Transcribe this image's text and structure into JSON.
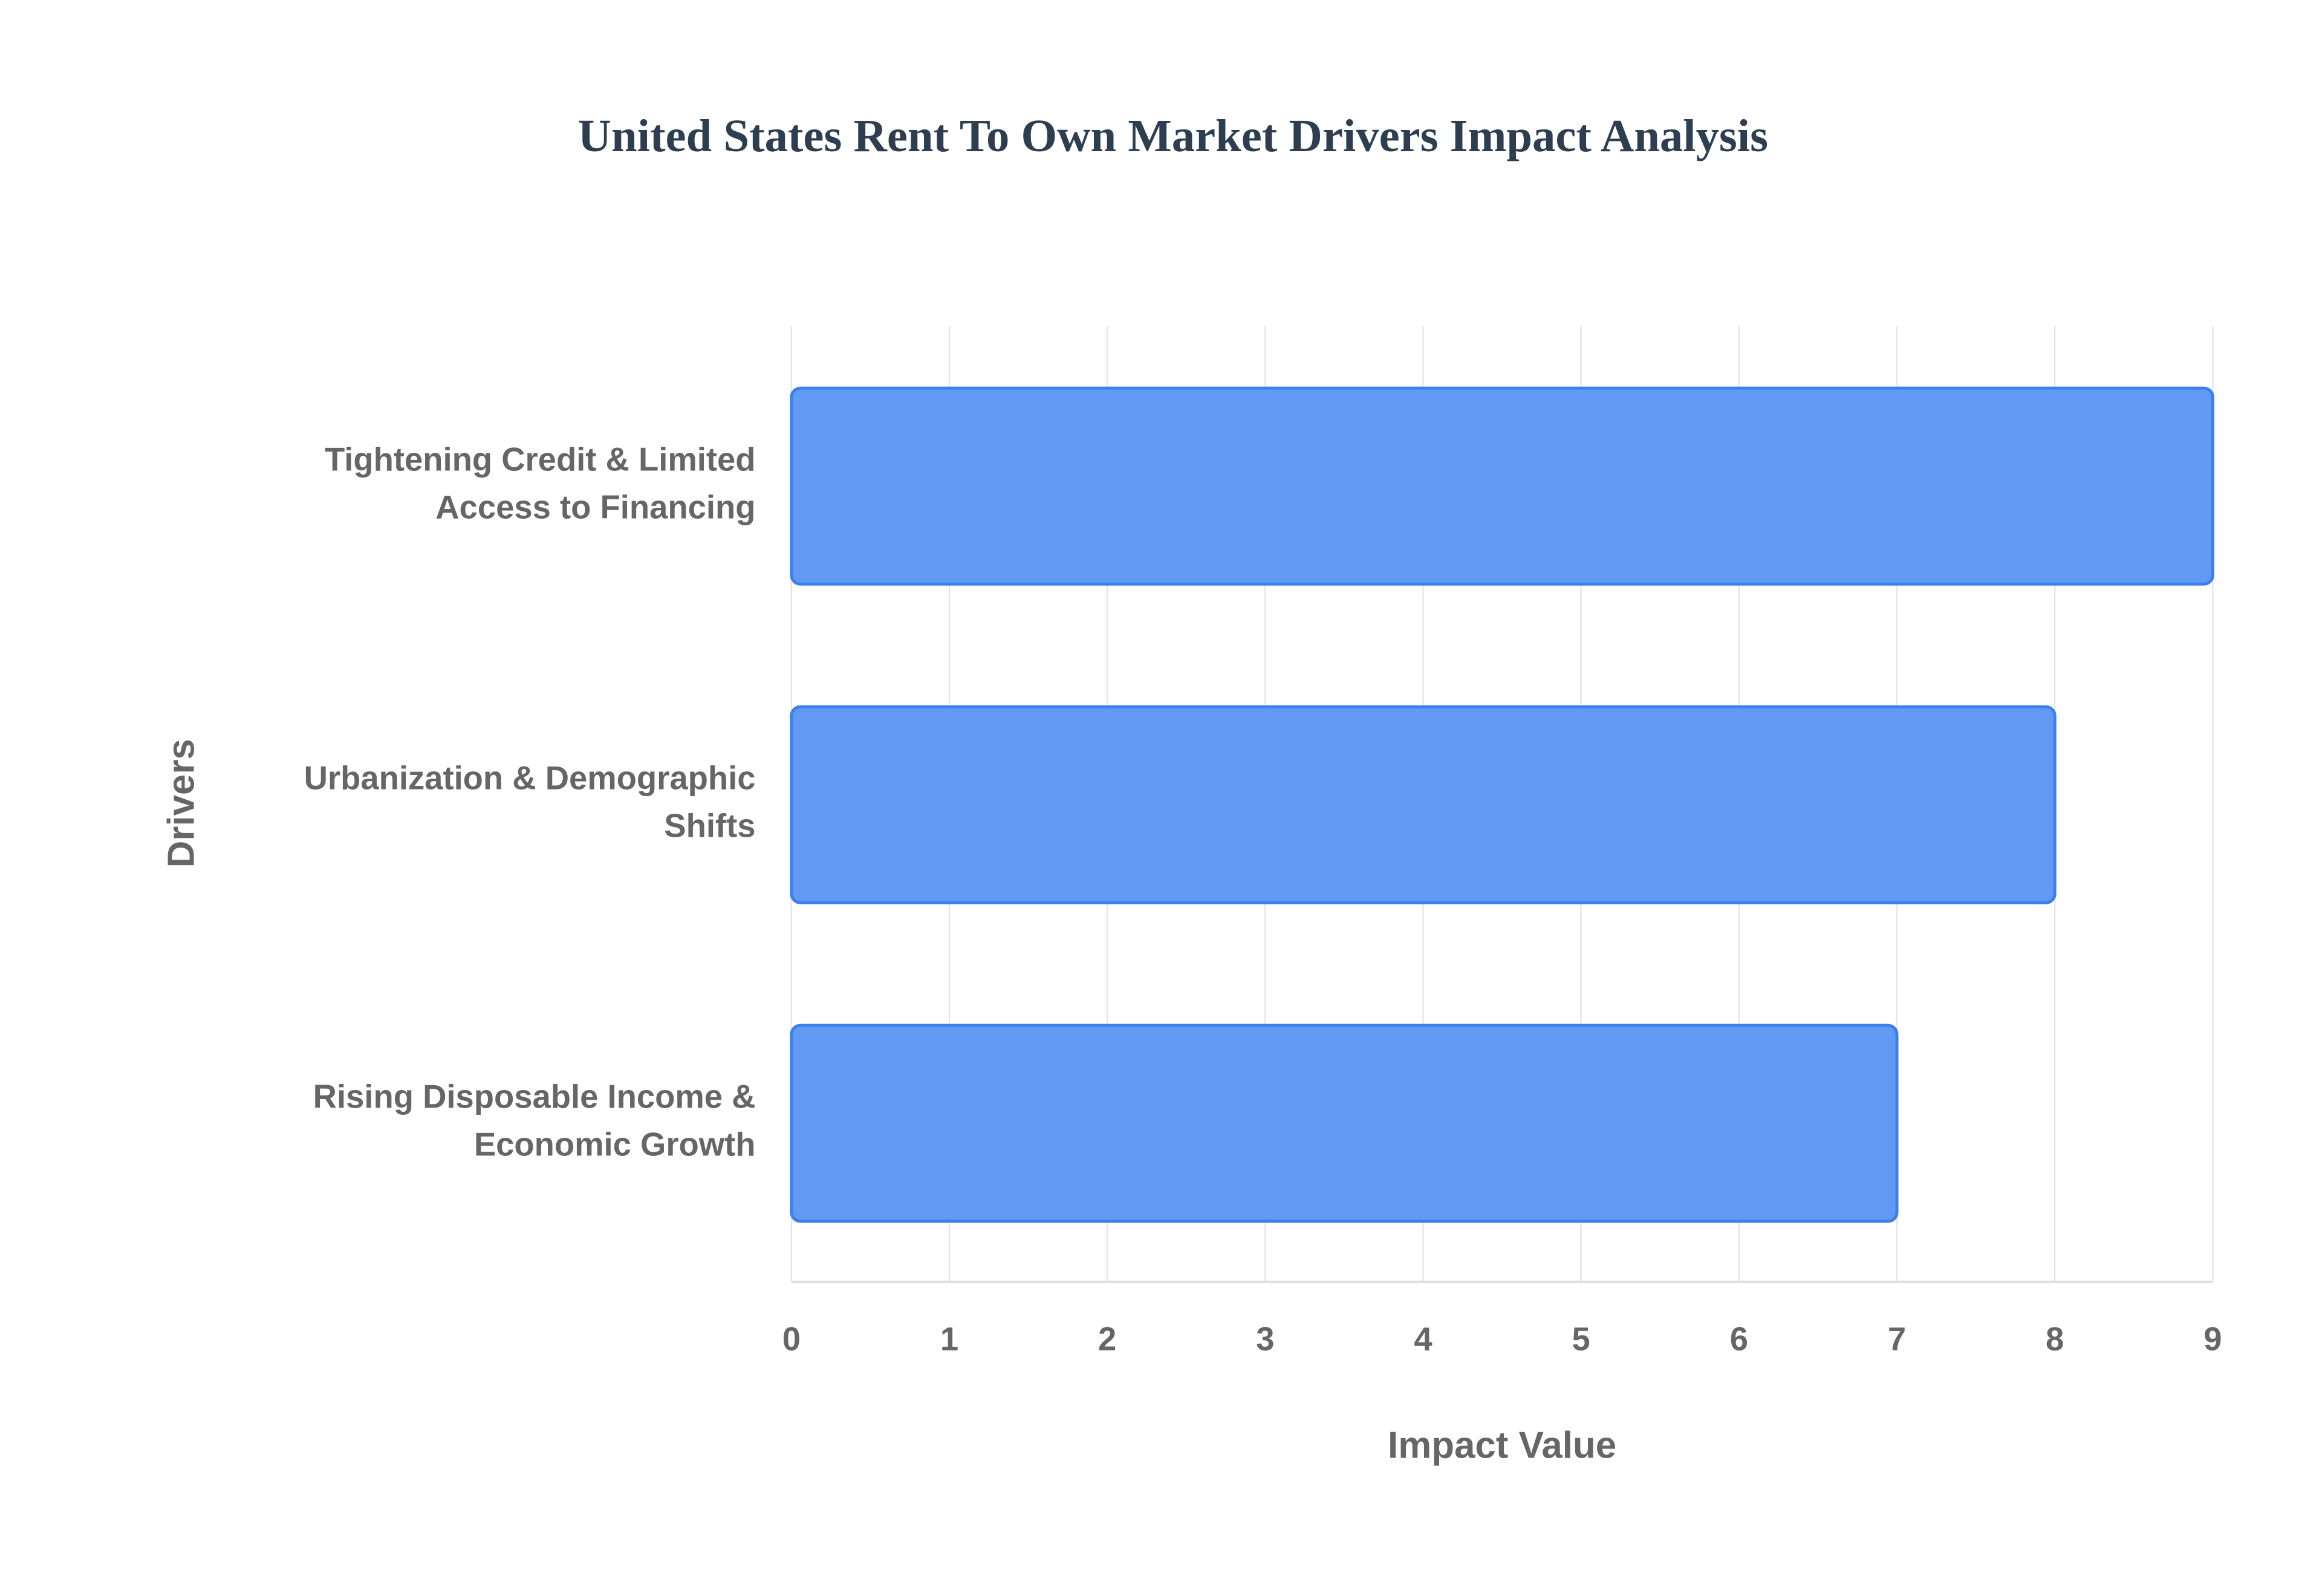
{
  "chart_data": {
    "type": "bar",
    "orientation": "horizontal",
    "title": "United States Rent To Own Market Drivers Impact Analysis",
    "x_label": "Impact Value",
    "y_label": "Drivers",
    "categories": [
      "Tightening Credit & Limited Access to Financing",
      "Urbanization & Demographic Shifts",
      "Rising Disposable Income & Economic Growth"
    ],
    "values": [
      9,
      8,
      7
    ],
    "color": "#6199f5",
    "edge_color": "#3b7fe8",
    "xlim": [
      0,
      9
    ],
    "xticks": [
      0,
      1,
      2,
      3,
      4,
      5,
      6,
      7,
      8,
      9
    ],
    "grid": true
  }
}
